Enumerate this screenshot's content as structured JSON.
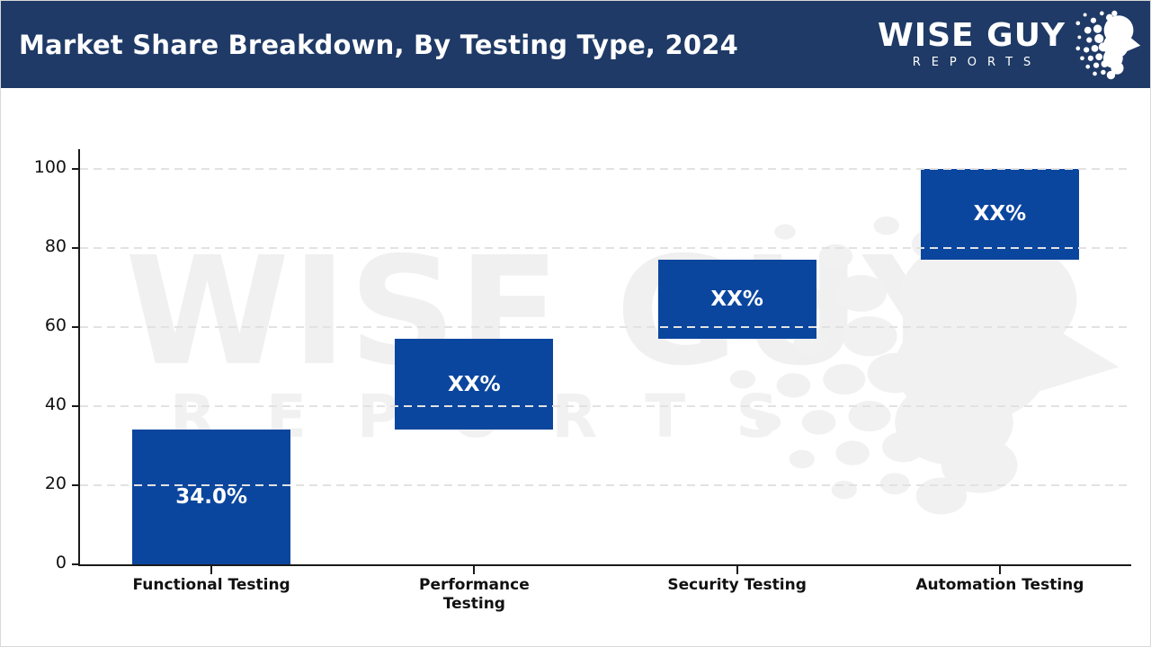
{
  "header": {
    "title": "Market Share Breakdown, By Testing Type, 2024",
    "background_color": "#1f3a66",
    "logo": {
      "primary": "WISE GUY",
      "secondary": "REPORTS",
      "head_icon": "dotted-face-profile"
    }
  },
  "watermark": {
    "primary": "WISE GUY",
    "secondary": "REPORTS"
  },
  "chart_data": {
    "type": "bar",
    "variant": "waterfall",
    "title": "Market Share Breakdown, By Testing Type, 2024",
    "categories": [
      "Functional Testing",
      "Performance Testing",
      "Security Testing",
      "Automation Testing"
    ],
    "category_lines": [
      [
        "Functional Testing"
      ],
      [
        "Performance",
        "Testing"
      ],
      [
        "Security Testing"
      ],
      [
        "Automation Testing"
      ]
    ],
    "segments": [
      {
        "start": 0,
        "end": 34
      },
      {
        "start": 34,
        "end": 57
      },
      {
        "start": 57,
        "end": 77
      },
      {
        "start": 77,
        "end": 100
      }
    ],
    "values": [
      34,
      23,
      20,
      23
    ],
    "bar_labels": [
      "34.0%",
      "XX%",
      "XX%",
      "XX%"
    ],
    "unit": "%",
    "y_ticks": [
      0,
      20,
      40,
      60,
      80,
      100
    ],
    "ylim": [
      0,
      100
    ],
    "xlabel": "",
    "ylabel": "",
    "bar_color": "#0b469e",
    "grid": "horizontal-dashed",
    "grid_color": "#e2e2e2",
    "axis_color": "#1a1a1a",
    "legend": "none"
  }
}
